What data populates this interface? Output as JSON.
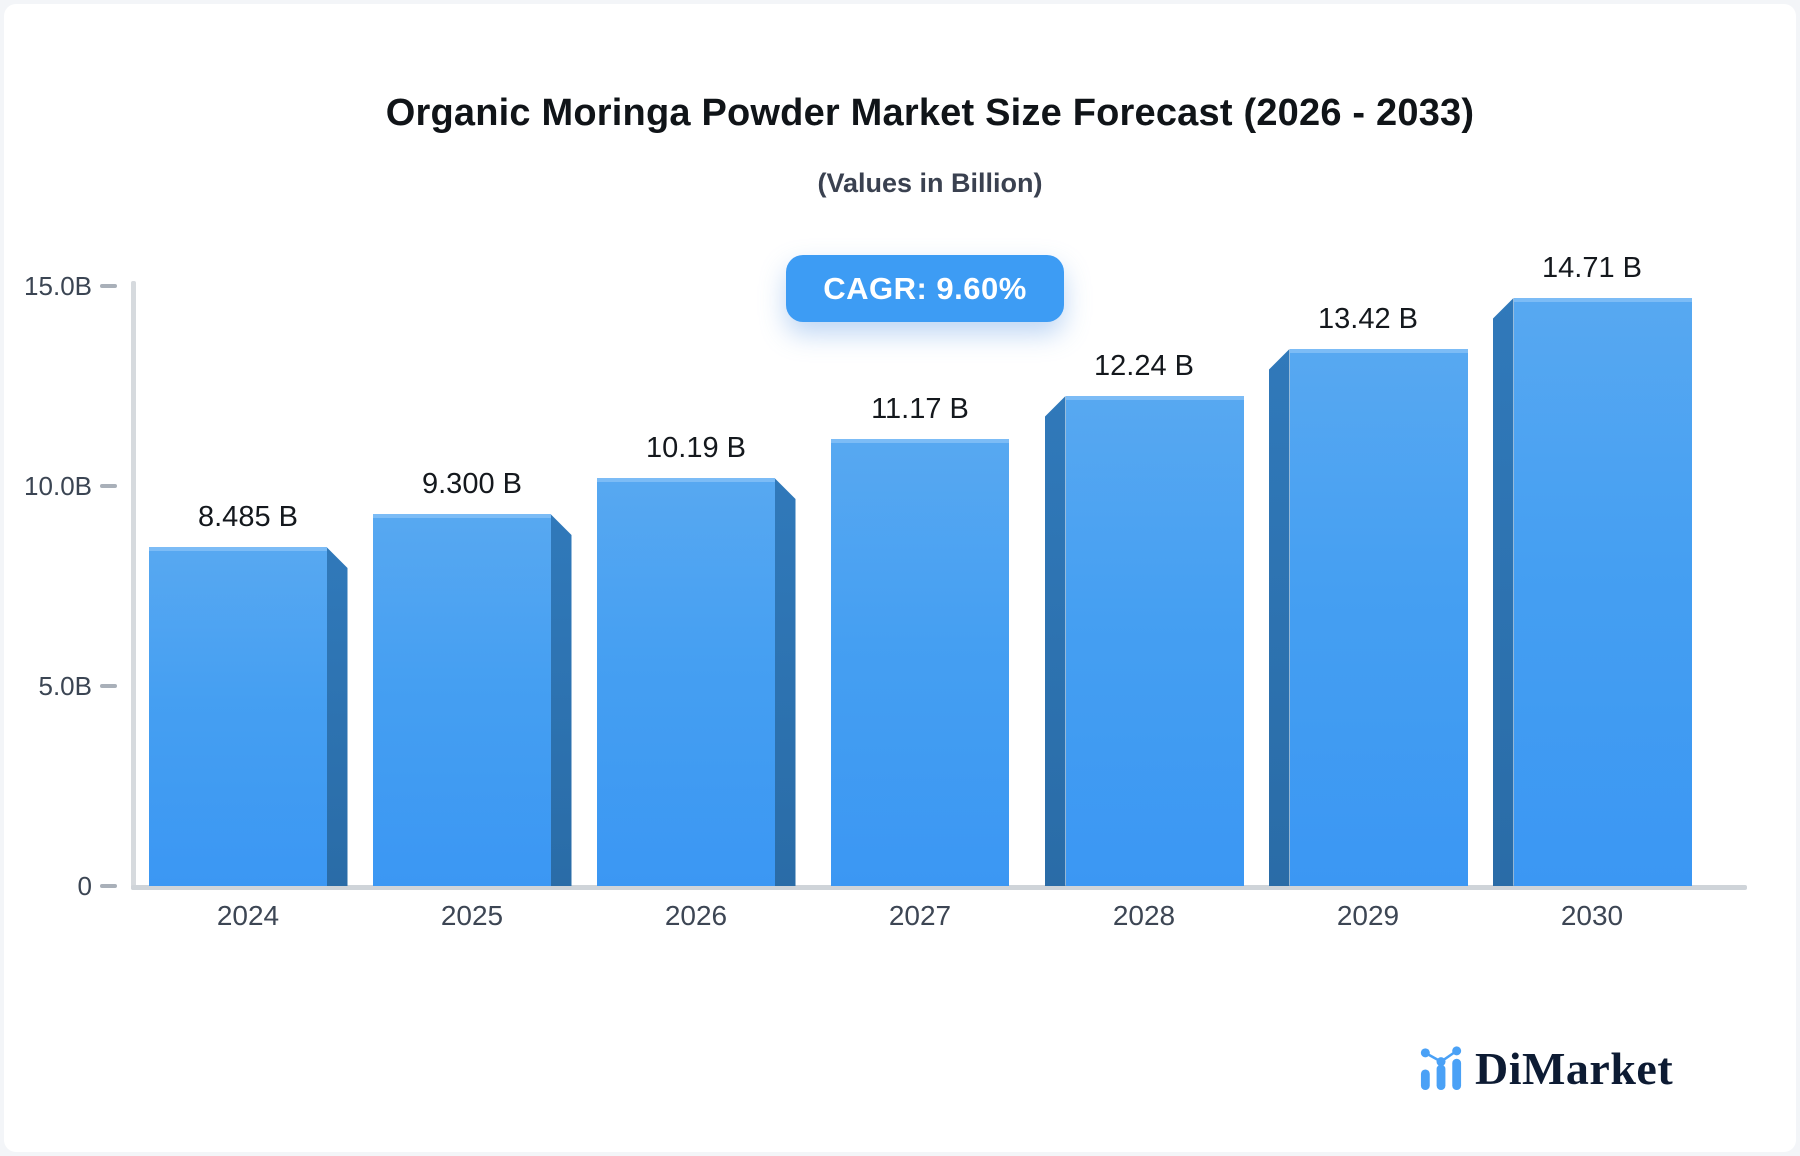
{
  "header": {
    "title": "Organic Moringa Powder Market Size Forecast (2026 - 2033)",
    "subtitle": "(Values in Billion)",
    "cagr_badge": "CAGR: 9.60%"
  },
  "chart_data": {
    "type": "bar",
    "title": "Organic Moringa Powder Market Size Forecast (2026 - 2033)",
    "subtitle": "(Values in Billion)",
    "cagr_percent": "9.60%",
    "unit": "Billion",
    "categories": [
      "2024",
      "2025",
      "2026",
      "2027",
      "2028",
      "2029",
      "2030"
    ],
    "values": [
      8.485,
      9.3,
      10.19,
      11.17,
      12.24,
      13.42,
      14.71
    ],
    "value_labels": [
      "8.485 B",
      "9.300 B",
      "10.19 B",
      "11.17 B",
      "12.24 B",
      "13.42 B",
      "14.71 B"
    ],
    "ylim": [
      0,
      15
    ],
    "yticks": [
      {
        "value": 15,
        "label": "15.0B"
      },
      {
        "value": 10,
        "label": "10.0B"
      },
      {
        "value": 5,
        "label": "5.0B"
      },
      {
        "value": 0,
        "label": "0"
      }
    ],
    "grid": false,
    "legend": false,
    "bar_style": "3d-beveled-toward-center"
  },
  "footer": {
    "brand": "DiMarket"
  },
  "colors": {
    "bar_face_top": "#57a8f1",
    "bar_face_bottom": "#3b97f3",
    "bar_top_highlight": "#7cbcf6",
    "bar_side": "#2d72b2",
    "badge_bg": "#3d9cf4",
    "badge_text": "#ffffff",
    "axis_line": "#d5d9de",
    "tick_text": "#3b4553",
    "title_text": "#101418",
    "logo_blue": "#4aa1f6",
    "logo_navy": "#0d1b33"
  }
}
